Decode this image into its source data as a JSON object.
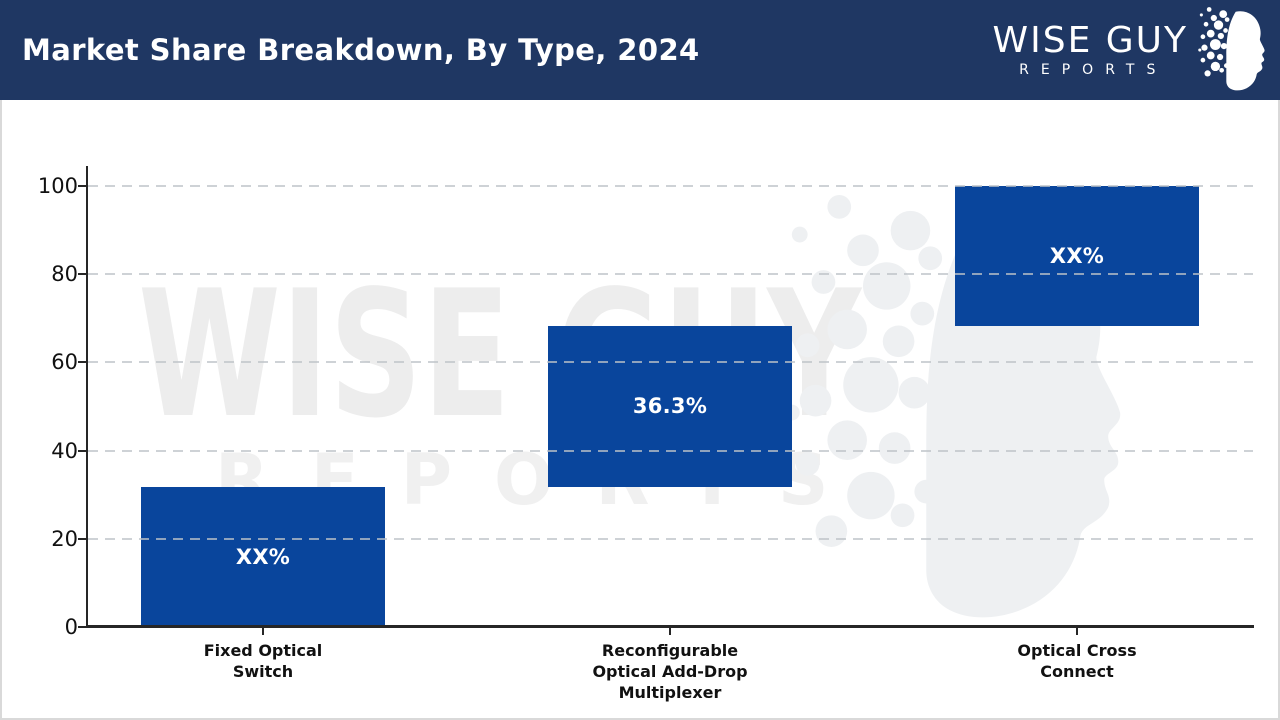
{
  "header": {
    "title": "Market Share Breakdown, By Type, 2024",
    "logo": {
      "line1": "WISE GUY",
      "line2": "REPORTS"
    }
  },
  "watermark": {
    "line1": "WISE GUY",
    "line2": "REPORTS"
  },
  "colors": {
    "header_background": "#1f3763",
    "bar": "#09459c",
    "gridline": "#c8cdd2",
    "axis": "#262626",
    "bar_label_text": "#ffffff",
    "watermark": "#ededed"
  },
  "chart_data": {
    "type": "bar",
    "subtype": "floating-waterfall",
    "title": "Market Share Breakdown, By Type, 2024",
    "xlabel": "",
    "ylabel": "",
    "categories": [
      [
        "Fixed Optical",
        "Switch"
      ],
      [
        "Reconfigurable",
        "Optical Add-Drop",
        "Multiplexer"
      ],
      [
        "Optical Cross",
        "Connect"
      ]
    ],
    "segments": [
      {
        "category": "Fixed Optical Switch",
        "start": 0,
        "end": 31.85,
        "label": "XX%"
      },
      {
        "category": "Reconfigurable Optical Add-Drop Multiplexer",
        "start": 31.85,
        "end": 68.15,
        "label": "36.3%"
      },
      {
        "category": "Optical Cross Connect",
        "start": 68.15,
        "end": 100,
        "label": "XX%"
      }
    ],
    "yticks": [
      0,
      20,
      40,
      60,
      80,
      100
    ],
    "ylim": [
      0,
      105
    ],
    "grid": "horizontal-dashed-over-bars",
    "legend": "none",
    "bar_color": "#09459c",
    "watermark_text": "WISE GUY REPORTS"
  }
}
